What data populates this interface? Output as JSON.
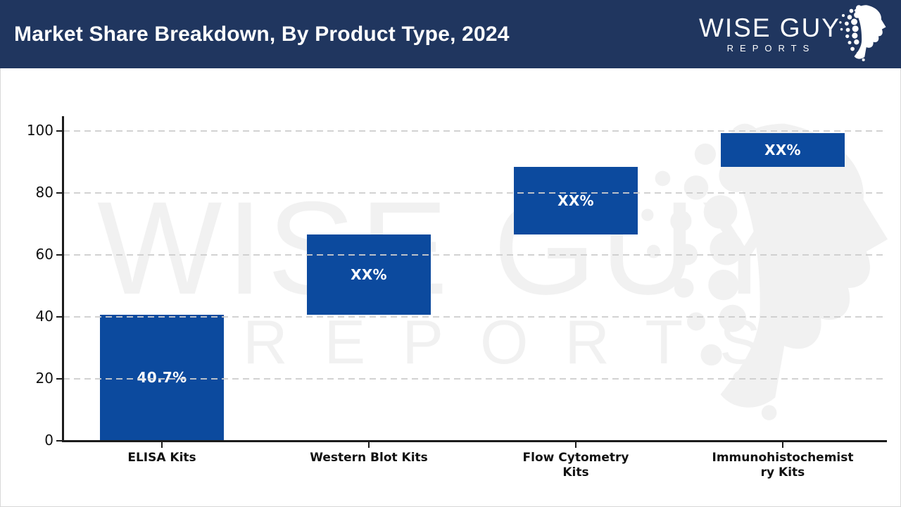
{
  "header": {
    "title": "Market Share Breakdown, By Product Type, 2024"
  },
  "brand": {
    "line1": "WISE GUY",
    "line2": "REPORTS"
  },
  "colors": {
    "header_bg": "#20365f",
    "bar": "#0c4a9e",
    "axis": "#1c1c1c",
    "grid": "#cdcdcd",
    "watermark": "#f1f1f1",
    "value_label": "#ffffff"
  },
  "chart_data": {
    "type": "bar",
    "subtype": "waterfall-floating-segments",
    "title": "Market Share Breakdown, By Product Type, 2024",
    "xlabel": "",
    "ylabel": "",
    "ylim": [
      0,
      100
    ],
    "yticks": [
      0,
      20,
      40,
      60,
      80,
      100
    ],
    "grid": "horizontal-dashed",
    "legend": "none",
    "bar_color": "#0c4a9e",
    "value_label_color": "#ffffff",
    "categories": [
      "ELISA Kits",
      "Western Blot Kits",
      "Flow Cytometry Kits",
      "Immunohistochemistry Kits"
    ],
    "category_label_lines": [
      [
        "ELISA Kits"
      ],
      [
        "Western Blot Kits"
      ],
      [
        "Flow Cytometry",
        "Kits"
      ],
      [
        "Immunohistochemist",
        "ry Kits"
      ]
    ],
    "segments": [
      {
        "category": "ELISA Kits",
        "start": 0,
        "end": 40.7,
        "value": 40.7,
        "label": "40.7%"
      },
      {
        "category": "Western Blot Kits",
        "start": 40.7,
        "end": 66.5,
        "value": 25.8,
        "label": "XX%"
      },
      {
        "category": "Flow Cytometry Kits",
        "start": 66.5,
        "end": 88.4,
        "value": 21.9,
        "label": "XX%"
      },
      {
        "category": "Immunohistochemistry Kits",
        "start": 88.4,
        "end": 99.3,
        "value": 10.9,
        "label": "XX%"
      }
    ]
  }
}
